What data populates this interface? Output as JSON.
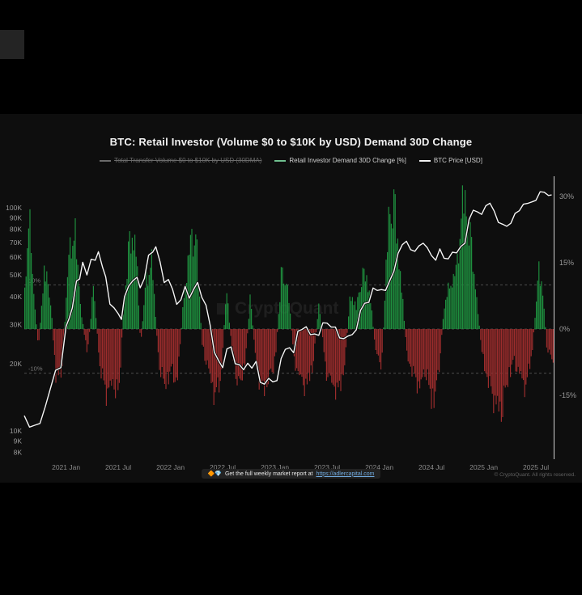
{
  "page": {
    "background": "#000000",
    "panel_background": "#0e0e0e"
  },
  "header": {
    "title": "BTC: Retail Investor (Volume $0 to $10K by USD) Demand 30D Change"
  },
  "legend": {
    "items": [
      {
        "label": "Total Transfer Volume $0 to $10K by USD (30DMA)",
        "color": "#6b6b6b",
        "disabled": true
      },
      {
        "label": "Retail Investor Demand 30D Change [%]",
        "color": "#6fbf8f",
        "disabled": false
      },
      {
        "label": "BTC Price [USD]",
        "color": "#f2f2f2",
        "disabled": false
      }
    ]
  },
  "watermark": "CryptoQuant",
  "footer": {
    "emojis": "🔶💎",
    "report_text": "Get the full weekly market report at",
    "report_link": "https://adlercapital.com",
    "copyright": "© CryptoQuant. All rights reserved."
  },
  "chart_data": {
    "type": "mixed",
    "title": "BTC: Retail Investor (Volume $0 to $10K by USD) Demand 30D Change",
    "left_axis": {
      "scale": "log",
      "label": "BTC Price (USD)",
      "ticks": [
        "100K",
        "90K",
        "80K",
        "70K",
        "60K",
        "50K",
        "40K",
        "30K",
        "20K",
        "10K",
        "9K",
        "8K"
      ],
      "tick_values": [
        100,
        90,
        80,
        70,
        60,
        50,
        40,
        30,
        20,
        10,
        9,
        8
      ],
      "unit": "USD thousands",
      "range_k": [
        7.5,
        138
      ]
    },
    "right_axis": {
      "scale": "linear",
      "label": "Retail Investor Demand 30D Change",
      "ticks": [
        "30%",
        "15%",
        "0%",
        "-15%"
      ],
      "tick_values": [
        30,
        15,
        0,
        -15
      ],
      "unit": "%",
      "range": [
        -22,
        33
      ]
    },
    "x_axis": {
      "ticks": [
        "2021 Jan",
        "2021 Jul",
        "2022 Jan",
        "2022 Jul",
        "2023 Jan",
        "2023 Jul",
        "2024 Jan",
        "2024 Jul",
        "2025 Jan",
        "2025 Jul"
      ],
      "tick_values": [
        2021,
        2021.5,
        2022,
        2022.5,
        2023,
        2023.5,
        2024,
        2024.5,
        2025,
        2025.5
      ],
      "range": [
        2020.6,
        2025.67
      ]
    },
    "reference_lines": [
      {
        "value": 10,
        "label": "10%"
      },
      {
        "value": 0,
        "label": ""
      },
      {
        "value": -10,
        "label": "-10%"
      }
    ],
    "series": [
      {
        "name": "Total Transfer Volume $0 to $10K by USD (30DMA)",
        "type": "hidden",
        "visible": false,
        "points": []
      },
      {
        "name": "Retail Investor Demand 30D Change [%]",
        "type": "area",
        "axis": "right",
        "unit": "%",
        "positive_color": "#1e8e3e",
        "negative_color": "#9b2c2c",
        "points": [
          [
            2020.6,
            8
          ],
          [
            2020.64,
            26
          ],
          [
            2020.68,
            10
          ],
          [
            2020.73,
            -4
          ],
          [
            2020.79,
            14
          ],
          [
            2020.85,
            6
          ],
          [
            2020.9,
            -12
          ],
          [
            2020.96,
            -8
          ],
          [
            2021.02,
            16
          ],
          [
            2021.08,
            22
          ],
          [
            2021.14,
            4
          ],
          [
            2021.2,
            -6
          ],
          [
            2021.26,
            10
          ],
          [
            2021.32,
            -9
          ],
          [
            2021.38,
            -14
          ],
          [
            2021.45,
            -12
          ],
          [
            2021.5,
            -15
          ],
          [
            2021.55,
            6
          ],
          [
            2021.6,
            19
          ],
          [
            2021.66,
            21
          ],
          [
            2021.71,
            -4
          ],
          [
            2021.76,
            11
          ],
          [
            2021.82,
            15
          ],
          [
            2021.88,
            -7
          ],
          [
            2021.94,
            -13
          ],
          [
            2022.0,
            -9
          ],
          [
            2022.06,
            -12
          ],
          [
            2022.12,
            6
          ],
          [
            2022.18,
            19
          ],
          [
            2022.24,
            21
          ],
          [
            2022.3,
            -4
          ],
          [
            2022.36,
            -9
          ],
          [
            2022.42,
            -15
          ],
          [
            2022.48,
            -11
          ],
          [
            2022.53,
            9
          ],
          [
            2022.59,
            -6
          ],
          [
            2022.65,
            -13
          ],
          [
            2022.71,
            -8
          ],
          [
            2022.76,
            7
          ],
          [
            2022.82,
            -9
          ],
          [
            2022.88,
            -14
          ],
          [
            2022.94,
            -11
          ],
          [
            2023.0,
            -7
          ],
          [
            2023.06,
            13
          ],
          [
            2023.12,
            9
          ],
          [
            2023.18,
            -7
          ],
          [
            2023.24,
            -11
          ],
          [
            2023.3,
            -13
          ],
          [
            2023.36,
            -8
          ],
          [
            2023.42,
            6
          ],
          [
            2023.48,
            -9
          ],
          [
            2023.54,
            -12
          ],
          [
            2023.6,
            -14
          ],
          [
            2023.66,
            -9
          ],
          [
            2023.72,
            8
          ],
          [
            2023.78,
            5
          ],
          [
            2023.84,
            13
          ],
          [
            2023.9,
            9
          ],
          [
            2023.96,
            -5
          ],
          [
            2024.02,
            -8
          ],
          [
            2024.08,
            24
          ],
          [
            2024.14,
            28
          ],
          [
            2024.2,
            12
          ],
          [
            2024.26,
            -6
          ],
          [
            2024.32,
            -10
          ],
          [
            2024.38,
            -13
          ],
          [
            2024.44,
            -9
          ],
          [
            2024.5,
            -17
          ],
          [
            2024.56,
            -11
          ],
          [
            2024.62,
            6
          ],
          [
            2024.68,
            10
          ],
          [
            2024.74,
            14
          ],
          [
            2024.8,
            31
          ],
          [
            2024.86,
            22
          ],
          [
            2024.92,
            9
          ],
          [
            2024.98,
            -6
          ],
          [
            2025.04,
            -12
          ],
          [
            2025.1,
            -16
          ],
          [
            2025.16,
            -19
          ],
          [
            2025.22,
            -12
          ],
          [
            2025.28,
            -7
          ],
          [
            2025.34,
            -10
          ],
          [
            2025.4,
            -13
          ],
          [
            2025.46,
            -5
          ],
          [
            2025.52,
            13
          ],
          [
            2025.56,
            9
          ],
          [
            2025.6,
            -4
          ],
          [
            2025.65,
            -7
          ]
        ]
      },
      {
        "name": "BTC Price [USD]",
        "type": "line",
        "axis": "left",
        "unit": "USD thousands",
        "color": "#f5f5f5",
        "points": [
          [
            2020.6,
            11.7
          ],
          [
            2020.65,
            10.4
          ],
          [
            2020.7,
            10.6
          ],
          [
            2020.75,
            10.8
          ],
          [
            2020.8,
            12.8
          ],
          [
            2020.85,
            15.5
          ],
          [
            2020.9,
            18.7
          ],
          [
            2020.95,
            19.2
          ],
          [
            2021.0,
            29.4
          ],
          [
            2021.03,
            32
          ],
          [
            2021.06,
            35.5
          ],
          [
            2021.1,
            47
          ],
          [
            2021.13,
            48
          ],
          [
            2021.16,
            57
          ],
          [
            2021.2,
            50
          ],
          [
            2021.24,
            58.8
          ],
          [
            2021.28,
            58.2
          ],
          [
            2021.31,
            63.5
          ],
          [
            2021.35,
            54
          ],
          [
            2021.38,
            49
          ],
          [
            2021.42,
            37
          ],
          [
            2021.46,
            35.6
          ],
          [
            2021.5,
            33.5
          ],
          [
            2021.53,
            31.6
          ],
          [
            2021.56,
            39.9
          ],
          [
            2021.6,
            44.6
          ],
          [
            2021.64,
            47.1
          ],
          [
            2021.68,
            48.8
          ],
          [
            2021.71,
            43.8
          ],
          [
            2021.75,
            48.2
          ],
          [
            2021.79,
            61.3
          ],
          [
            2021.83,
            63.3
          ],
          [
            2021.86,
            66.9
          ],
          [
            2021.9,
            57.3
          ],
          [
            2021.94,
            46.2
          ],
          [
            2021.98,
            47.7
          ],
          [
            2022.02,
            43.1
          ],
          [
            2022.06,
            36.9
          ],
          [
            2022.1,
            38.7
          ],
          [
            2022.14,
            44.4
          ],
          [
            2022.18,
            39.3
          ],
          [
            2022.22,
            42.9
          ],
          [
            2022.26,
            46.3
          ],
          [
            2022.3,
            39.7
          ],
          [
            2022.34,
            36.6
          ],
          [
            2022.38,
            29.8
          ],
          [
            2022.42,
            22.5
          ],
          [
            2022.46,
            20.7
          ],
          [
            2022.5,
            19.2
          ],
          [
            2022.54,
            23.3
          ],
          [
            2022.58,
            23.8
          ],
          [
            2022.62,
            20
          ],
          [
            2022.66,
            19.8
          ],
          [
            2022.7,
            18.8
          ],
          [
            2022.74,
            20.1
          ],
          [
            2022.78,
            19.1
          ],
          [
            2022.82,
            20.5
          ],
          [
            2022.86,
            16.5
          ],
          [
            2022.9,
            16.2
          ],
          [
            2022.94,
            17.2
          ],
          [
            2022.98,
            16.6
          ],
          [
            2023.02,
            16.8
          ],
          [
            2023.06,
            21.1
          ],
          [
            2023.1,
            23.2
          ],
          [
            2023.14,
            23.6
          ],
          [
            2023.18,
            22.4
          ],
          [
            2023.22,
            28.0
          ],
          [
            2023.26,
            28.5
          ],
          [
            2023.3,
            29.3
          ],
          [
            2023.34,
            27.0
          ],
          [
            2023.38,
            27.2
          ],
          [
            2023.42,
            26.8
          ],
          [
            2023.46,
            30.5
          ],
          [
            2023.5,
            30.4
          ],
          [
            2023.54,
            29.2
          ],
          [
            2023.58,
            29.2
          ],
          [
            2023.62,
            26.1
          ],
          [
            2023.66,
            25.9
          ],
          [
            2023.7,
            26.6
          ],
          [
            2023.74,
            27.0
          ],
          [
            2023.78,
            28.4
          ],
          [
            2023.82,
            34.7
          ],
          [
            2023.86,
            37.3
          ],
          [
            2023.9,
            37.7
          ],
          [
            2023.94,
            43.7
          ],
          [
            2023.98,
            42.6
          ],
          [
            2024.02,
            43.0
          ],
          [
            2024.06,
            42.6
          ],
          [
            2024.1,
            47.1
          ],
          [
            2024.14,
            52.0
          ],
          [
            2024.18,
            62.5
          ],
          [
            2024.22,
            68.3
          ],
          [
            2024.26,
            70.8
          ],
          [
            2024.3,
            64.9
          ],
          [
            2024.34,
            63.8
          ],
          [
            2024.38,
            67.5
          ],
          [
            2024.42,
            69.4
          ],
          [
            2024.46,
            66.2
          ],
          [
            2024.5,
            61.0
          ],
          [
            2024.54,
            58.2
          ],
          [
            2024.58,
            65.4
          ],
          [
            2024.62,
            59.4
          ],
          [
            2024.66,
            59.0
          ],
          [
            2024.7,
            63.2
          ],
          [
            2024.74,
            62.8
          ],
          [
            2024.78,
            67.0
          ],
          [
            2024.82,
            69.4
          ],
          [
            2024.86,
            88.7
          ],
          [
            2024.9,
            97.5
          ],
          [
            2024.94,
            95.8
          ],
          [
            2024.98,
            93.4
          ],
          [
            2025.02,
            102.1
          ],
          [
            2025.06,
            104.8
          ],
          [
            2025.1,
            96.6
          ],
          [
            2025.14,
            86.0
          ],
          [
            2025.18,
            84.4
          ],
          [
            2025.22,
            82.6
          ],
          [
            2025.26,
            85.2
          ],
          [
            2025.3,
            94.3
          ],
          [
            2025.34,
            97.0
          ],
          [
            2025.38,
            103.7
          ],
          [
            2025.42,
            104.6
          ],
          [
            2025.46,
            106.2
          ],
          [
            2025.5,
            108.0
          ],
          [
            2025.54,
            118.0
          ],
          [
            2025.58,
            117.4
          ],
          [
            2025.62,
            113.5
          ],
          [
            2025.65,
            114.2
          ]
        ]
      }
    ]
  }
}
